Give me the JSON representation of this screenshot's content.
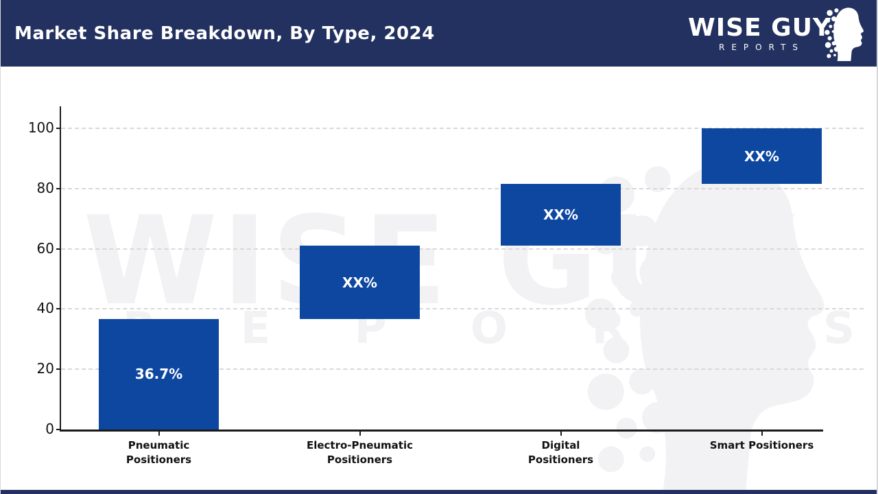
{
  "header": {
    "title": "Market Share Breakdown, By Type, 2024",
    "logo_line1": "WISE GUY",
    "logo_line2": "REPORTS"
  },
  "watermark": {
    "line1": "WISE GUY",
    "line2": "R E P O R T S"
  },
  "colors": {
    "header_bg": "#22315f",
    "footer_bg": "#22315f",
    "bar": "#0d47a0",
    "bar_label": "#ffffff",
    "gridline": "#d8d8d8",
    "axis": "#1a1a1a",
    "watermark": "#f2f2f4"
  },
  "chart_data": {
    "type": "bar",
    "subtype": "waterfall",
    "title": "Market Share Breakdown, By Type, 2024",
    "categories": [
      [
        "Pneumatic",
        "Positioners"
      ],
      [
        "Electro-Pneumatic",
        "Positioners"
      ],
      [
        "Digital",
        "Positioners"
      ],
      [
        "Smart Positioners"
      ]
    ],
    "segments": [
      {
        "category": "Pneumatic Positioners",
        "start": 0,
        "end": 36.7,
        "label": "36.7%"
      },
      {
        "category": "Electro-Pneumatic Positioners",
        "start": 36.7,
        "end": 61,
        "label": "XX%"
      },
      {
        "category": "Digital Positioners",
        "start": 61,
        "end": 81.5,
        "label": "XX%"
      },
      {
        "category": "Smart Positioners",
        "start": 81.5,
        "end": 100,
        "label": "XX%"
      }
    ],
    "xlabel": "",
    "ylabel": "",
    "ylim": [
      0,
      100
    ],
    "yticks": [
      0,
      20,
      40,
      60,
      80,
      100
    ],
    "grid": "horizontal-dashed",
    "legend": "none"
  }
}
